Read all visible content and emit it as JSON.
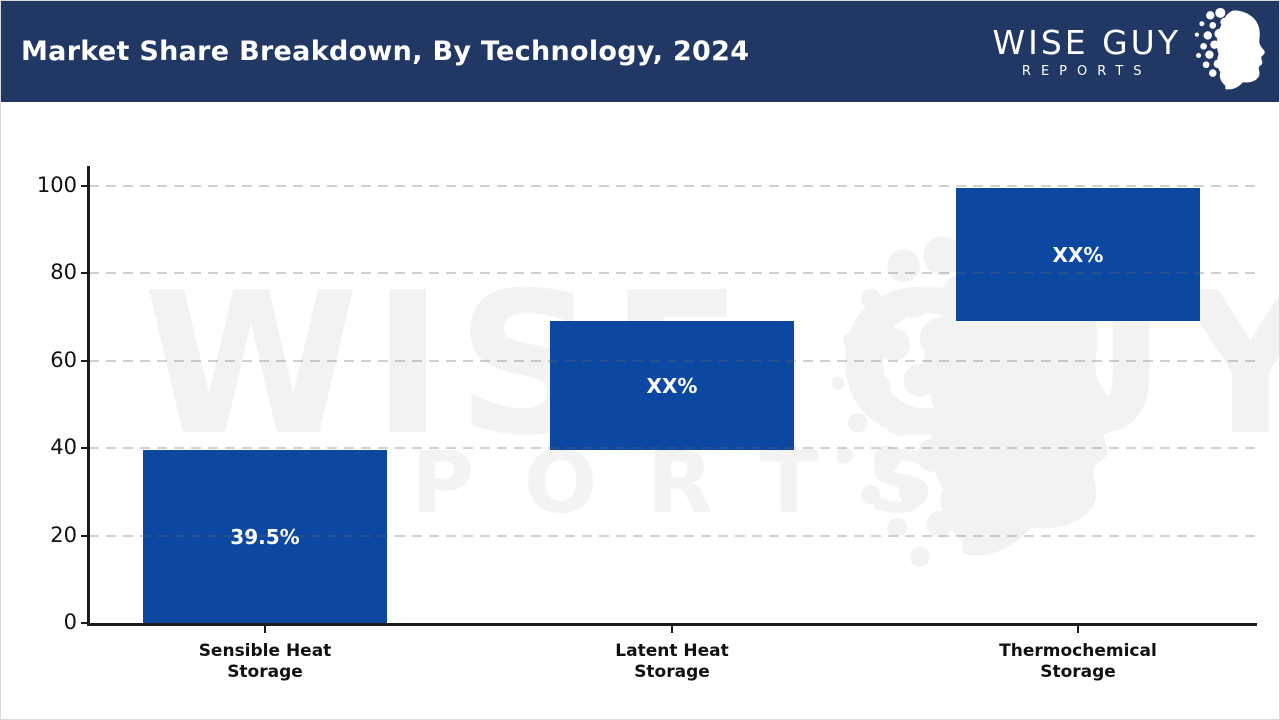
{
  "page": {
    "background": "#ffffff",
    "border_color": "#d9d9d9"
  },
  "header": {
    "title": "Market Share Breakdown, By Technology, 2024",
    "background_color": "#213764",
    "title_color": "#ffffff",
    "logo": {
      "line1": "WISE GUY",
      "line2": "REPORTS",
      "face_icon": "dotted-head-profile-icon",
      "color": "#ffffff"
    }
  },
  "watermark": {
    "line1": "WISE GUY",
    "line2": "REPORTS",
    "face_icon": "dotted-head-profile-icon",
    "color": "#f2f2f2"
  },
  "chart_data": {
    "type": "bar",
    "subtype": "floating-segment-waterfall",
    "title": "Market Share Breakdown, By Technology, 2024",
    "categories": [
      "Sensible Heat\nStorage",
      "Latent Heat\nStorage",
      "Thermochemical\nStorage"
    ],
    "series": [
      {
        "name": "Market share (%)",
        "segments": [
          {
            "from": 0,
            "to": 39.5,
            "label": "39.5%"
          },
          {
            "from": 39.5,
            "to": 69,
            "label": "XX%"
          },
          {
            "from": 69,
            "to": 99.5,
            "label": "XX%"
          }
        ]
      }
    ],
    "ylim": [
      0,
      100
    ],
    "yticks": [
      0,
      20,
      40,
      60,
      80,
      100
    ],
    "xlabel": "",
    "ylabel": "",
    "legend": "none",
    "grid": {
      "horizontal": true,
      "style": "dashed",
      "color": "#cfcfcf"
    },
    "bar_color": "#0c47a1",
    "bar_label_color": "#ffffff",
    "axis_color": "#1b1b1b"
  }
}
